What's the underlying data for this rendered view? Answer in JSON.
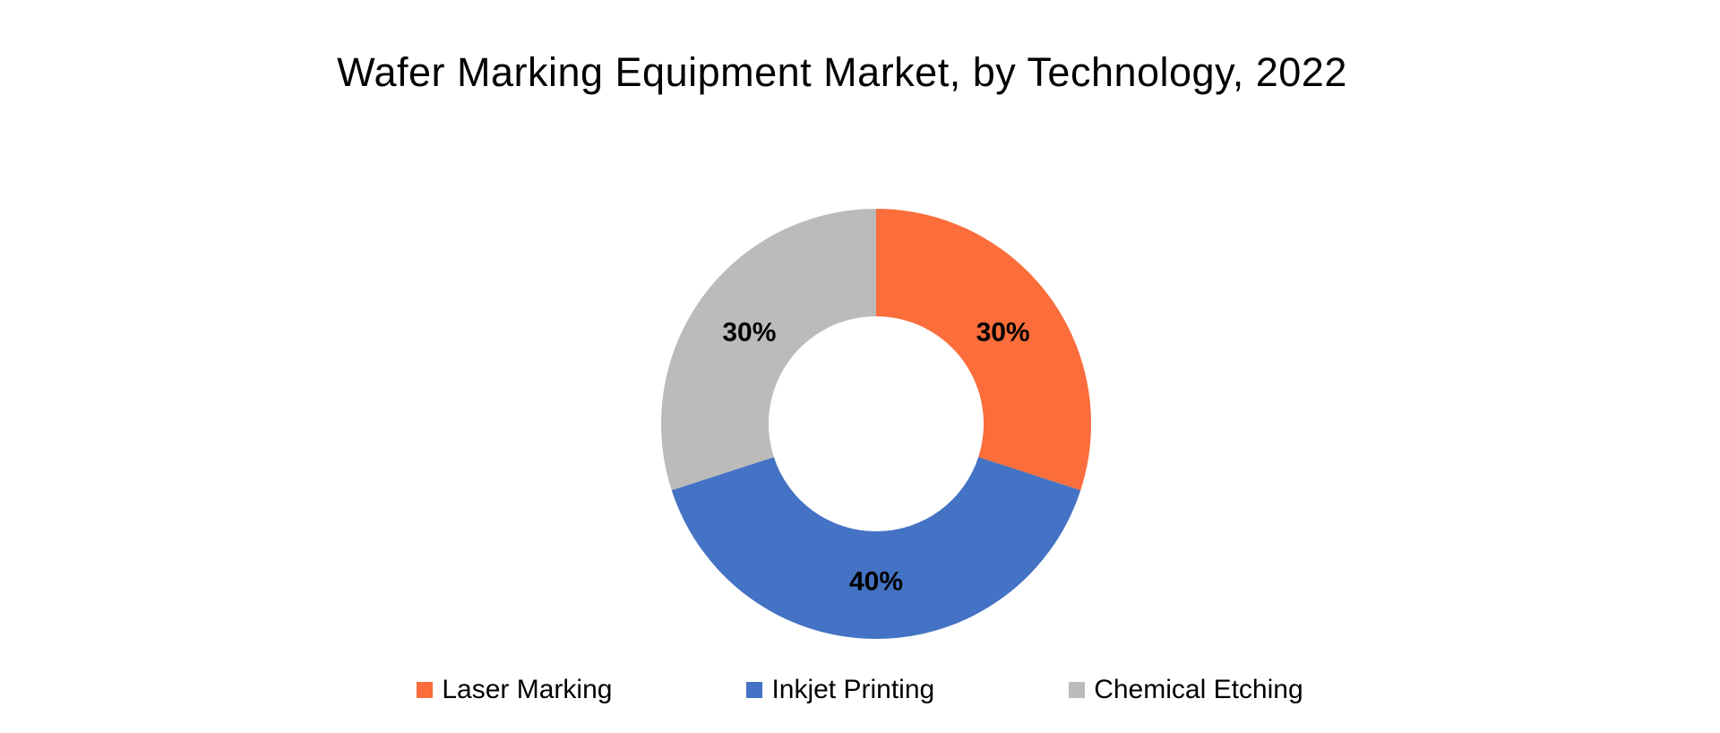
{
  "chart_data": {
    "type": "pie",
    "subtype": "donut",
    "title": "Wafer Marking Equipment Market, by Technology, 2022",
    "unit": "%",
    "start_angle_deg": 0,
    "direction": "clockwise",
    "hole_ratio": 0.5,
    "legend_position": "bottom",
    "data_label_color": "#000000",
    "background_color": "#ffffff",
    "slices": [
      {
        "label": "Laser Marking",
        "value": 30,
        "display": "30%",
        "color": "#FB6D3B"
      },
      {
        "label": "Inkjet Printing",
        "value": 40,
        "display": "40%",
        "color": "#4472C4"
      },
      {
        "label": "Chemical Etching",
        "value": 30,
        "display": "30%",
        "color": "#BBBBBB"
      }
    ]
  }
}
